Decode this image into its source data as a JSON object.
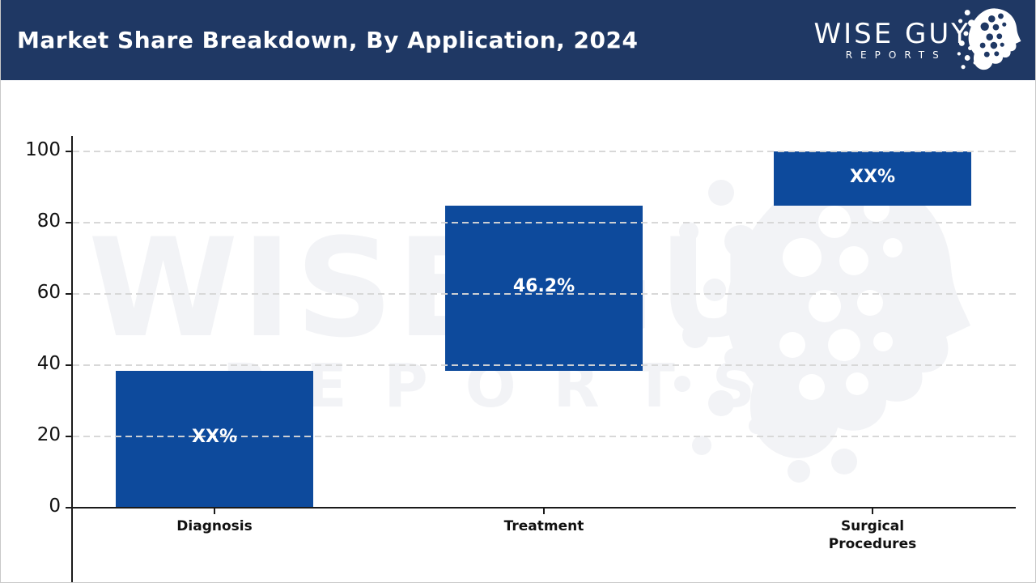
{
  "header": {
    "title": "Market Share Breakdown, By Application, 2024",
    "bg_color": "#1f3864",
    "logo": {
      "line1": "WISE GUY",
      "line2": "REPORTS",
      "icon": "head-profile-dots-icon"
    }
  },
  "watermark": {
    "line1": "WISE GUY",
    "line2": "REPORTS",
    "color": "#f2f3f6"
  },
  "chart_data": {
    "type": "bar",
    "subtype": "waterfall",
    "title": "Market Share Breakdown, By Application, 2024",
    "categories": [
      "Diagnosis",
      "Treatment",
      "Surgical Procedures"
    ],
    "segments": [
      {
        "category": "Diagnosis",
        "start": 0,
        "end": 38.5,
        "value": 38.5,
        "value_label": "XX%"
      },
      {
        "category": "Treatment",
        "start": 38.5,
        "end": 84.7,
        "value": 46.2,
        "value_label": "46.2%"
      },
      {
        "category": "Surgical Procedures",
        "start": 84.7,
        "end": 100,
        "value": 15.3,
        "value_label": "XX%"
      }
    ],
    "yticks": [
      0,
      20,
      40,
      60,
      80,
      100
    ],
    "ylim": [
      0,
      104
    ],
    "bar_color": "#0d4a9c",
    "grid": "horizontal-dashed",
    "gridline_color": "#d6d6d6",
    "legend": "none"
  }
}
